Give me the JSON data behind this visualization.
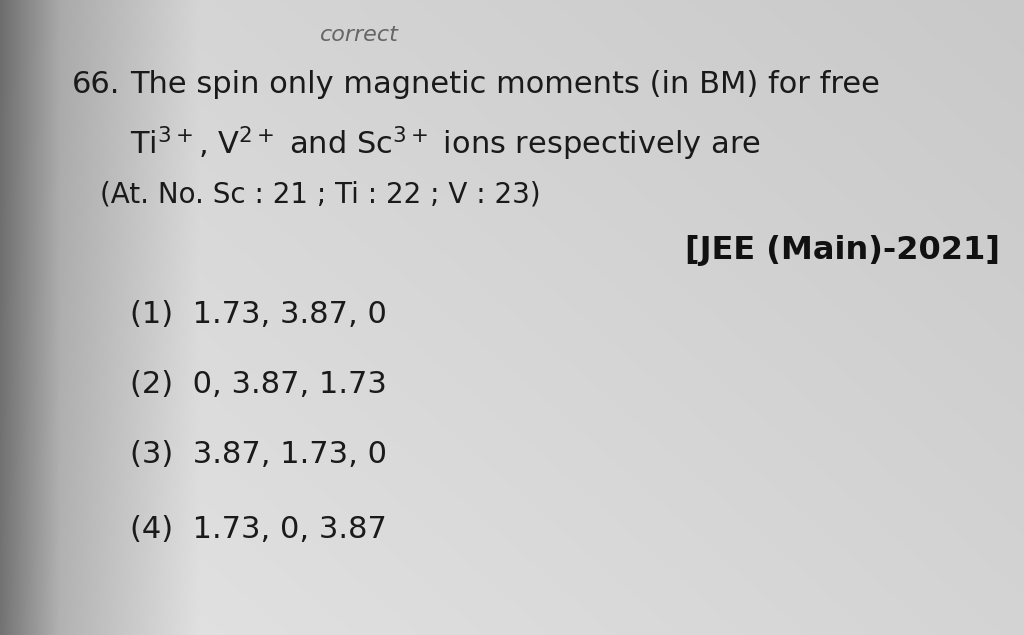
{
  "background_color_left": "#a8a8a8",
  "background_color_center": "#d8d8d8",
  "background_color_right": "#c8c8c8",
  "correct_text": "correct",
  "question_number": "66.",
  "question_line1": "The spin only magnetic moments (in BM) for free",
  "question_line2_math": "Ti$^{3+}$, V$^{2+}$ and Sc$^{3+}$ ions respectively are",
  "hint_text": "(At. No. Sc : 21 ; Ti : 22 ; V : 23)",
  "source_text": "[JEE (Main)-2021]",
  "options": [
    "(1)  1.73, 3.87, 0",
    "(2)  0, 3.87, 1.73",
    "(3)  3.87, 1.73, 0",
    "(4)  1.73, 0, 3.87"
  ],
  "text_color": "#1a1a1a",
  "gray_text_color": "#666666",
  "bold_source_color": "#111111",
  "fig_width": 10.24,
  "fig_height": 6.35,
  "dpi": 100
}
